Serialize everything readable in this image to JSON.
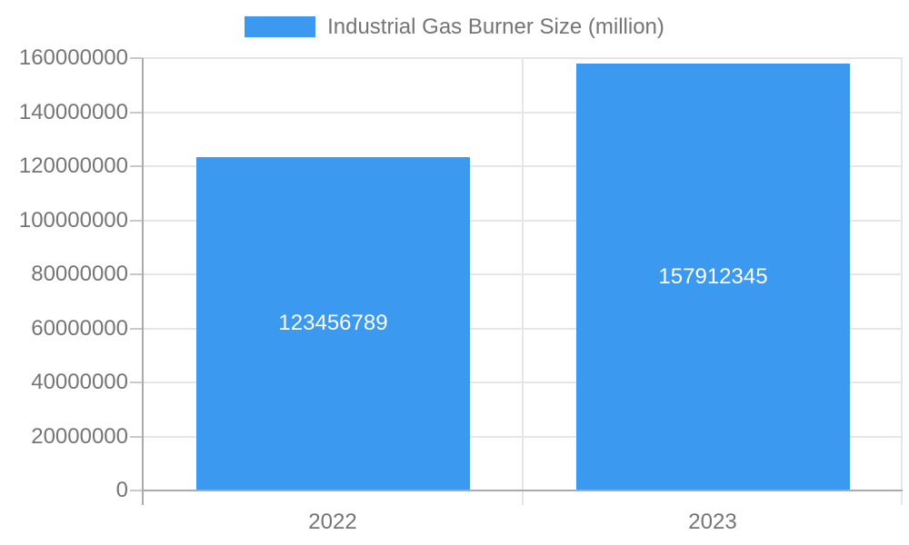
{
  "chart_data": {
    "type": "bar",
    "title": "Industrial Gas Burner Size (million)",
    "categories": [
      "2022",
      "2023"
    ],
    "values": [
      123456789,
      157912345
    ],
    "value_labels": [
      "123456789",
      "157912345"
    ],
    "ylim": [
      0,
      160000000
    ],
    "y_tick_step": 20000000,
    "y_tick_labels": [
      "0",
      "20000000",
      "40000000",
      "60000000",
      "80000000",
      "100000000",
      "120000000",
      "140000000",
      "160000000"
    ],
    "legend": {
      "position": "top",
      "label": "Industrial Gas Burner Size (million)"
    },
    "grid": true,
    "colors": {
      "bar": "#3b99f0",
      "grid_line": "#e6e6e6",
      "axis_line": "#ababab",
      "tick_line": "#c9c9c9",
      "label_text": "#757575",
      "bar_value_text": "#ffffff",
      "background": "#ffffff"
    }
  }
}
